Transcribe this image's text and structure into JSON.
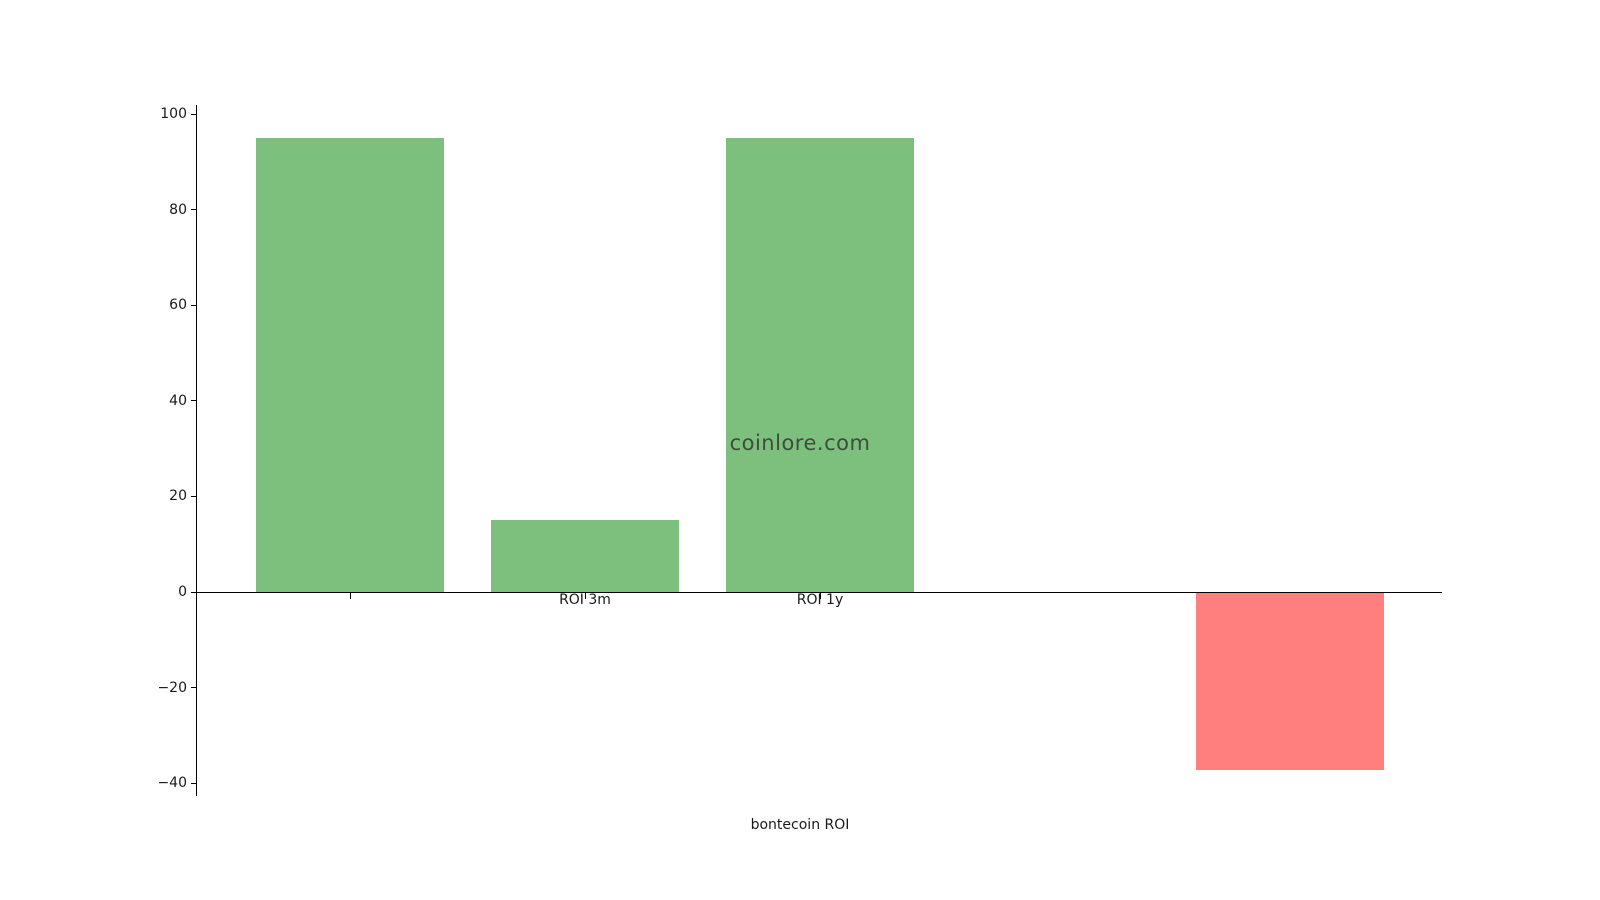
{
  "figure": {
    "title": "bontecoin ROI",
    "watermark": "coinlore.com",
    "background_color": "#ffffff"
  },
  "chart_data": {
    "type": "bar",
    "title": "bontecoin ROI",
    "watermark": "coinlore.com",
    "xlabel": "",
    "ylabel": "",
    "categories": [
      "",
      "ROI 3m",
      "ROI 1y",
      "",
      ""
    ],
    "values": [
      95,
      15,
      95,
      0,
      -37
    ],
    "x_tick_visible": [
      true,
      true,
      true,
      false,
      false
    ],
    "yticks": [
      100,
      80,
      60,
      40,
      20,
      0,
      -20,
      -40
    ],
    "ylim": [
      -43,
      102
    ],
    "grid": false,
    "legend_position": "none",
    "colors": {
      "positive_bar": "#7dc07d",
      "negative_bar": "#ff7f7f",
      "axis": "#000000",
      "tick_label": "#1a1a1a",
      "watermark": "#2d2d2d"
    }
  }
}
